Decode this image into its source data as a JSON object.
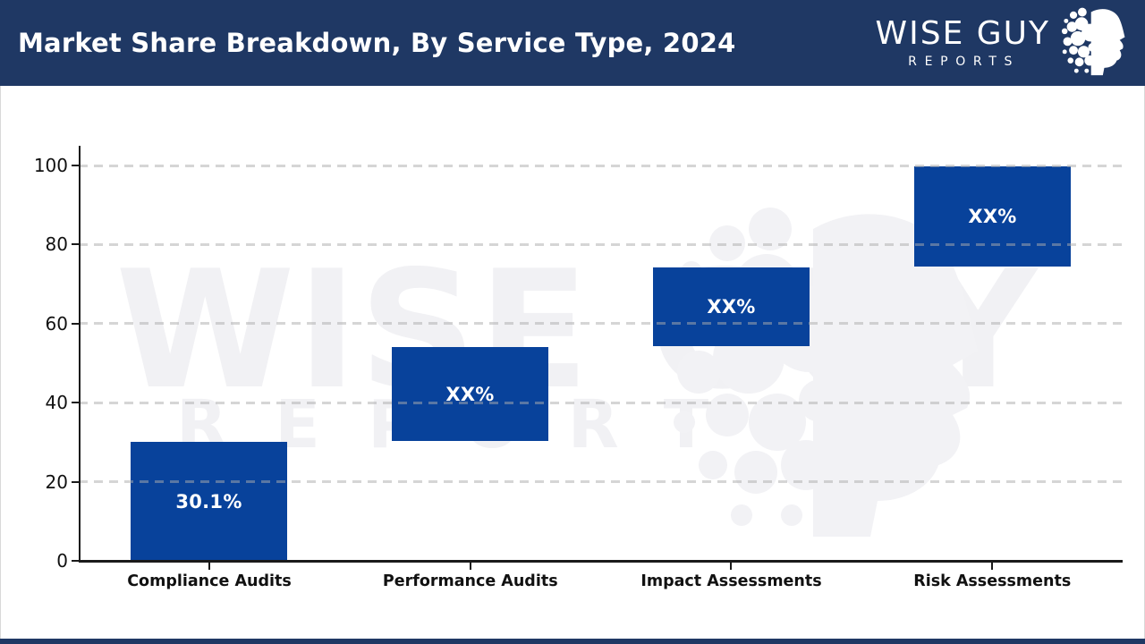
{
  "header": {
    "title": "Market Share Breakdown, By Service Type, 2024",
    "background_color": "#1f3864",
    "logo": {
      "line1": "WISE GUY",
      "line2": "REPORTS",
      "face_icon": "dotted-head-profile-icon"
    }
  },
  "watermark": {
    "line1": "WISE GUY",
    "line2": "REPORTS",
    "face_icon": "dotted-head-profile-icon"
  },
  "chart_data": {
    "type": "bar",
    "subtype": "waterfall",
    "title": "Market Share Breakdown, By Service Type, 2024",
    "categories": [
      "Compliance Audits",
      "Performance Audits",
      "Impact Assessments",
      "Risk Assessments"
    ],
    "bars": [
      {
        "category": "Compliance Audits",
        "start": 0,
        "end": 30.1,
        "label": "30.1%"
      },
      {
        "category": "Performance Audits",
        "start": 30.2,
        "end": 54.0,
        "label": "XX%"
      },
      {
        "category": "Impact Assessments",
        "start": 54.3,
        "end": 74.2,
        "label": "XX%"
      },
      {
        "category": "Risk Assessments",
        "start": 74.5,
        "end": 99.9,
        "label": "XX%"
      }
    ],
    "y_ticks": [
      0,
      20,
      40,
      60,
      80,
      100
    ],
    "ylim": [
      0,
      105
    ],
    "xlabel": "",
    "ylabel": "",
    "grid": "dashed-horizontal",
    "legend": "none",
    "bar_color": "#08429b",
    "bar_label_color": "#ffffff",
    "axis_color": "#1a1a1a"
  }
}
